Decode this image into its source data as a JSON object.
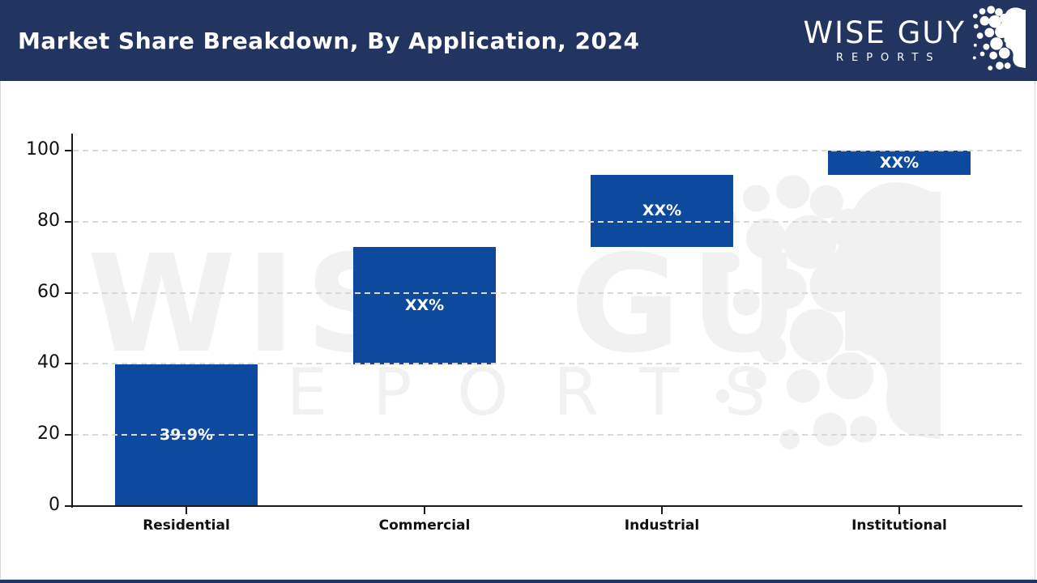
{
  "header": {
    "title": "Market Share Breakdown, By Application, 2024",
    "bg_color": "#213560",
    "logo": {
      "wordmark": "WISE GUY",
      "subtext": "REPORTS"
    }
  },
  "watermark": {
    "line1": "WISE GUY",
    "line2": "REPORTS"
  },
  "colors": {
    "bar": "#0d499c",
    "header_bg": "#213560",
    "grid": "#d9d9d9",
    "spine": "#1a1a1a",
    "watermark": "#f1f1f1"
  },
  "chart_data": {
    "type": "bar",
    "subtype": "waterfall",
    "title": "Market Share Breakdown, By Application, 2024",
    "categories": [
      "Residential",
      "Commercial",
      "Industrial",
      "Institutional"
    ],
    "segments": [
      {
        "category": "Residential",
        "start": 0,
        "end": 39.9,
        "value": 39.9,
        "label": "39.9%"
      },
      {
        "category": "Commercial",
        "start": 39.9,
        "end": 72.9,
        "value": 33.0,
        "label": "XX%"
      },
      {
        "category": "Industrial",
        "start": 72.9,
        "end": 93.2,
        "value": 20.3,
        "label": "XX%"
      },
      {
        "category": "Institutional",
        "start": 93.2,
        "end": 100,
        "value": 6.8,
        "label": "XX%"
      }
    ],
    "yticks": [
      0,
      20,
      40,
      60,
      80,
      100
    ],
    "ylim": [
      0,
      100
    ],
    "xlabel": "",
    "ylabel": "",
    "grid": "horizontal-dashed",
    "legend": "none",
    "bar_color": "#0d499c"
  }
}
